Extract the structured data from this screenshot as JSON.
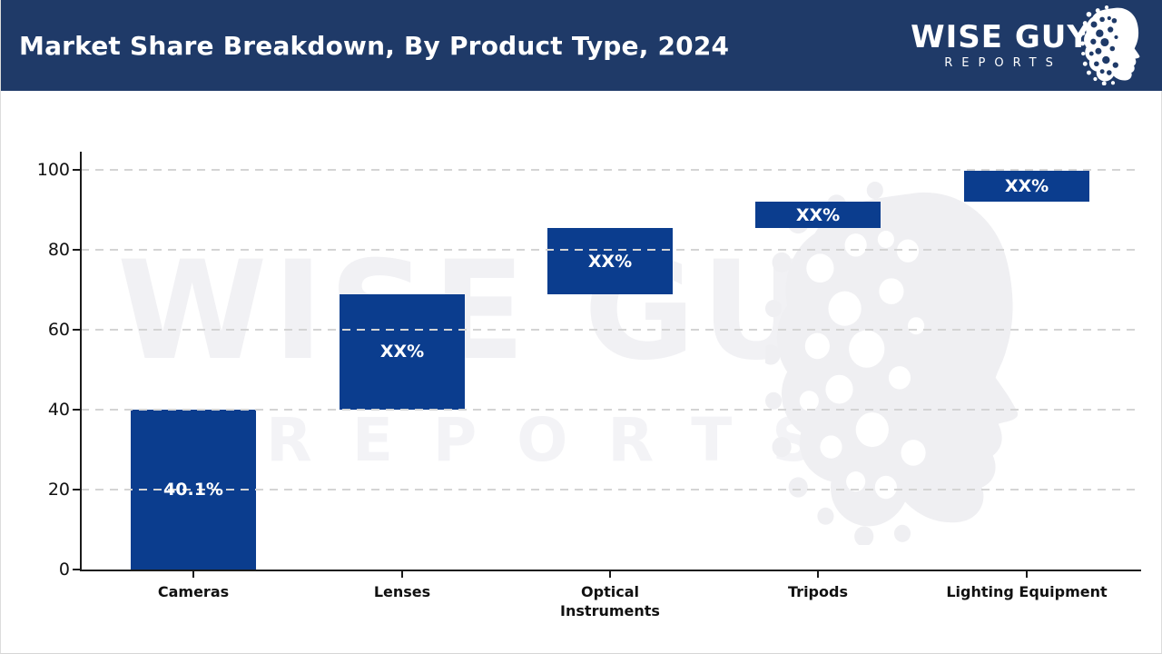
{
  "header": {
    "title": "Market Share Breakdown, By Product Type, 2024",
    "logo": {
      "line1": "WISE GUY",
      "line2": "REPORTS"
    }
  },
  "watermark": {
    "line1": "WISE GUY",
    "line2": "REPORTS"
  },
  "colors": {
    "header_bg": "#1f3a68",
    "bar_fill": "#0b3d8e",
    "bar_label_text": "#ffffff",
    "grid": "#d4d4d4",
    "axis": "#1a1a1a",
    "watermark": "#f1f1f4"
  },
  "icons": {
    "logo_face": "wiseguy-face-profile-dots-icon"
  },
  "chart_data": {
    "type": "bar",
    "subtype": "waterfall",
    "title": "Market Share Breakdown, By Product Type, 2024",
    "categories": [
      "Cameras",
      "Lenses",
      "Optical\nInstruments",
      "Tripods",
      "Lighting Equipment"
    ],
    "segments": [
      {
        "category": "Cameras",
        "start": 0,
        "end": 40.1,
        "label": "40.1%"
      },
      {
        "category": "Lenses",
        "start": 40.1,
        "end": 68.8,
        "label": "XX%"
      },
      {
        "category": "Optical Instruments",
        "start": 68.8,
        "end": 85.4,
        "label": "XX%"
      },
      {
        "category": "Tripods",
        "start": 85.4,
        "end": 92.0,
        "label": "XX%"
      },
      {
        "category": "Lighting Equipment",
        "start": 92.0,
        "end": 99.8,
        "label": "XX%"
      }
    ],
    "yticks": [
      0,
      20,
      40,
      60,
      80,
      100
    ],
    "ylim": [
      0,
      105
    ],
    "xlabel": "",
    "ylabel": "",
    "grid": "dashed-horizontal",
    "legend": "none"
  }
}
